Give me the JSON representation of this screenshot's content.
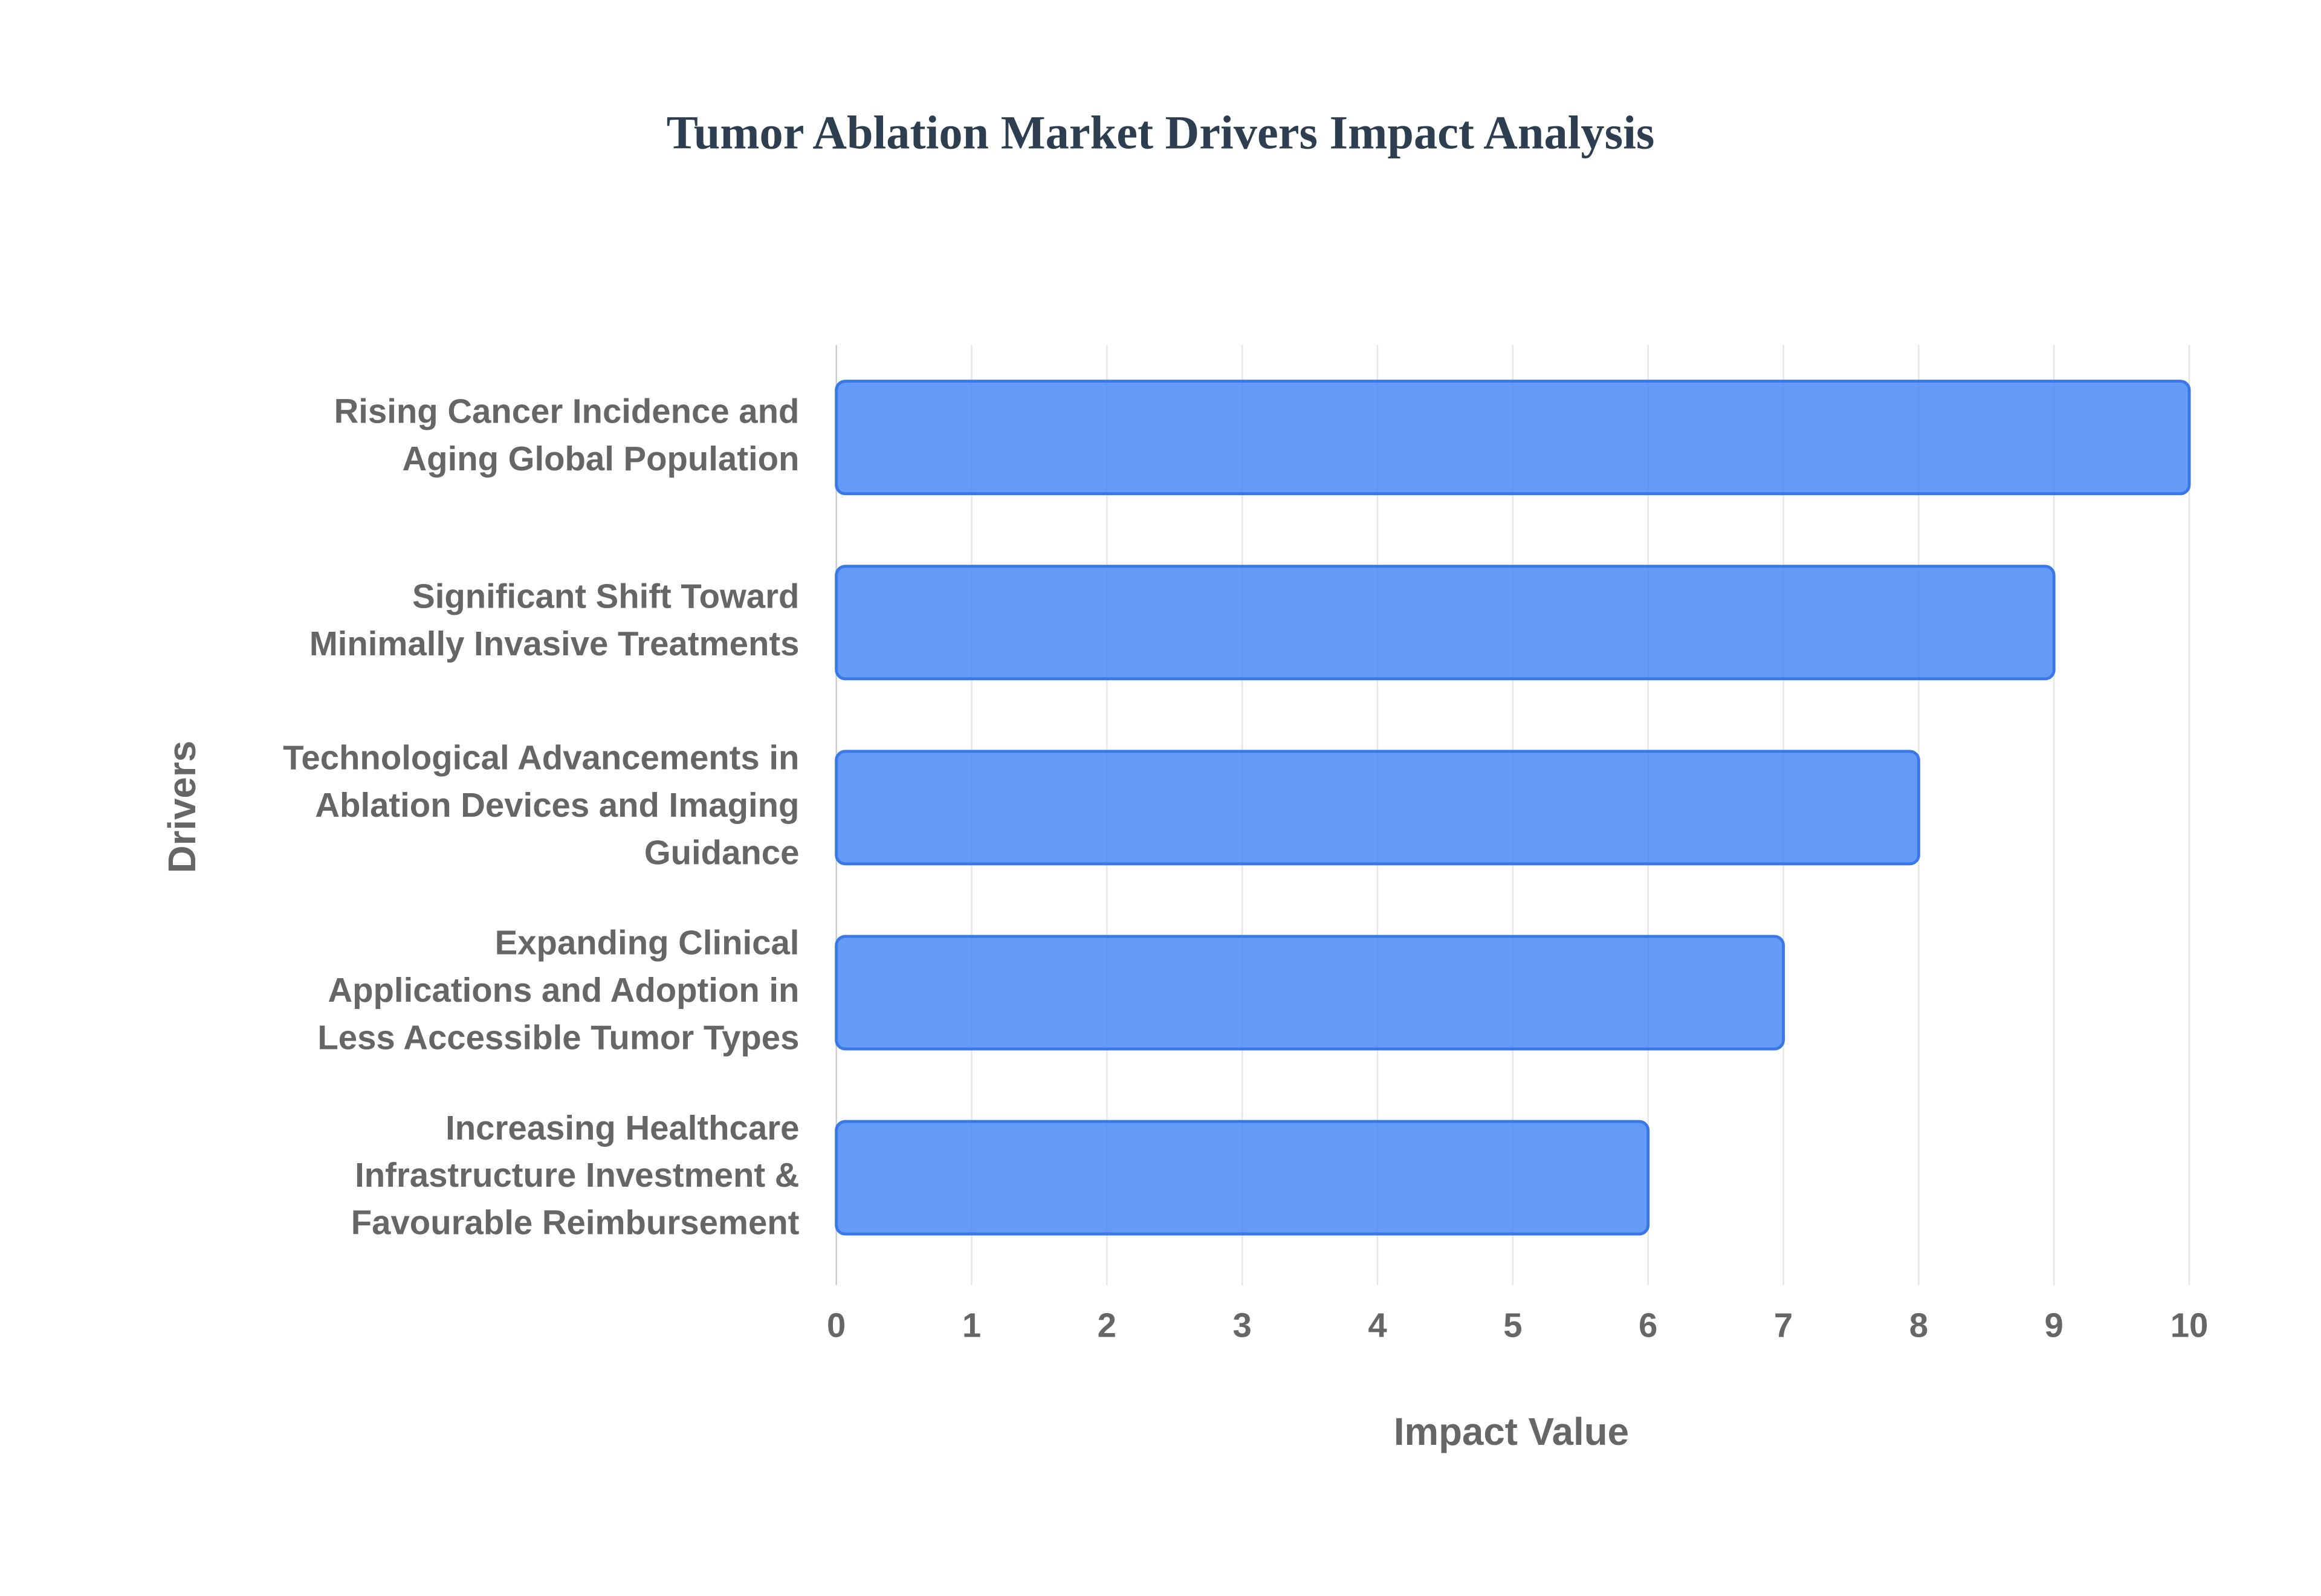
{
  "chart_data": {
    "type": "bar",
    "orientation": "horizontal",
    "title": "Tumor Ablation Market Drivers Impact Analysis",
    "x_label": "Impact Value",
    "y_label": "Drivers",
    "categories": [
      [
        "Rising Cancer Incidence and",
        "Aging Global Population"
      ],
      [
        "Significant Shift Toward",
        "Minimally Invasive Treatments"
      ],
      [
        "Technological Advancements in",
        "Ablation Devices and Imaging",
        "Guidance"
      ],
      [
        "Expanding Clinical",
        "Applications and Adoption in",
        "Less Accessible Tumor Types"
      ],
      [
        "Increasing Healthcare",
        "Infrastructure Investment &",
        "Favourable Reimbursement"
      ]
    ],
    "values": [
      10,
      9,
      8,
      7,
      6
    ],
    "color": "#4285f4",
    "xlim": [
      0,
      10
    ],
    "xticks": [
      0,
      1,
      2,
      3,
      4,
      5,
      6,
      7,
      8,
      9,
      10
    ],
    "grid": true
  }
}
